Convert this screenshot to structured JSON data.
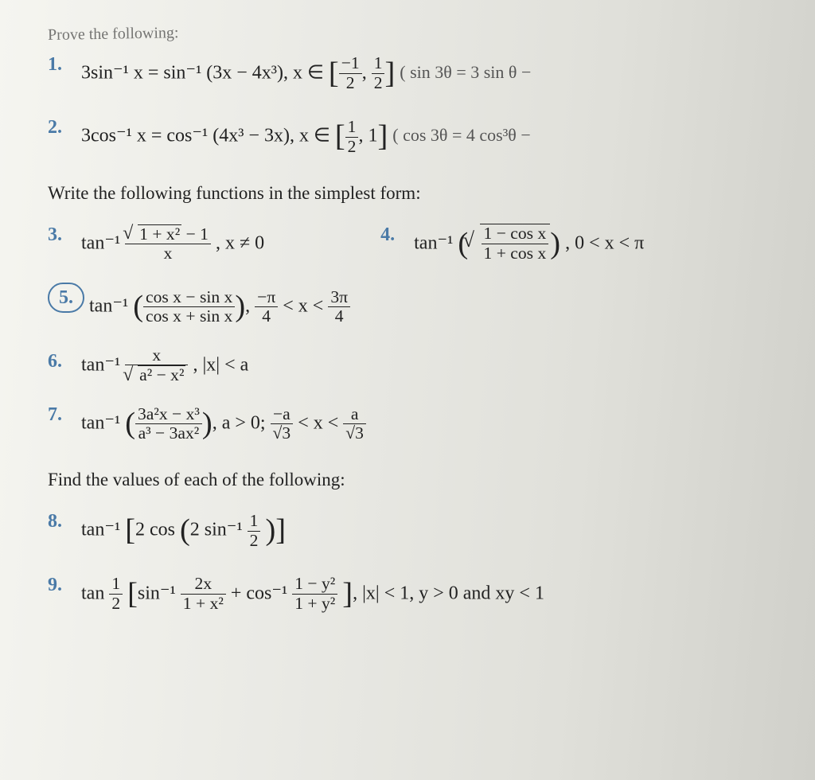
{
  "header_cut": "Prove the following:",
  "q1": {
    "num": "1.",
    "lhs": "3sin⁻¹ x = sin⁻¹ (3x − 4x³),  x ∈",
    "interval_l": "−",
    "interval_r": "",
    "hand": "( sin 3θ = 3 sin θ −"
  },
  "q2": {
    "num": "2.",
    "text": "3cos⁻¹ x = cos⁻¹ (4x³ − 3x),  x ∈",
    "hand": "( cos 3θ = 4 cos³θ −"
  },
  "instr1": "Write the following functions in the simplest form:",
  "q3": {
    "num": "3.",
    "pre": "tan⁻¹ ",
    "num_top": "√(1 + x²) − 1",
    "den": "x",
    "tail": ",  x ≠ 0"
  },
  "q4": {
    "num": "4.",
    "pre": "tan⁻¹ ",
    "num_top": "1 − cos x",
    "den": "1 + cos x",
    "tail": ",  0 < x < π"
  },
  "q5": {
    "num": "5.",
    "pre": "tan⁻¹ ",
    "num_top": "cos x − sin x",
    "den": "cos x + sin x",
    "tail_pre": ", ",
    "tail_post": " < x < "
  },
  "q6": {
    "num": "6.",
    "pre": "tan⁻¹ ",
    "num_top": "x",
    "den": "√(a² − x²)",
    "tail": ",  |x| < a"
  },
  "q7": {
    "num": "7.",
    "pre": "tan⁻¹ ",
    "num_top": "3a²x − x³",
    "den": "a³ − 3ax²",
    "tail_pre": ",  a > 0; ",
    "tail_post": " < x < "
  },
  "instr2": "Find the values of each of the following:",
  "q8": {
    "num": "8.",
    "pre": "tan⁻¹ ",
    "inner": "2 cos",
    "arg_pre": "2 sin⁻¹ "
  },
  "q9": {
    "num": "9.",
    "pre": "tan ",
    "mid1": "sin⁻¹ ",
    "mid2": " + cos⁻¹ ",
    "tail": ",  |x| < 1,  y > 0  and  xy < 1"
  }
}
